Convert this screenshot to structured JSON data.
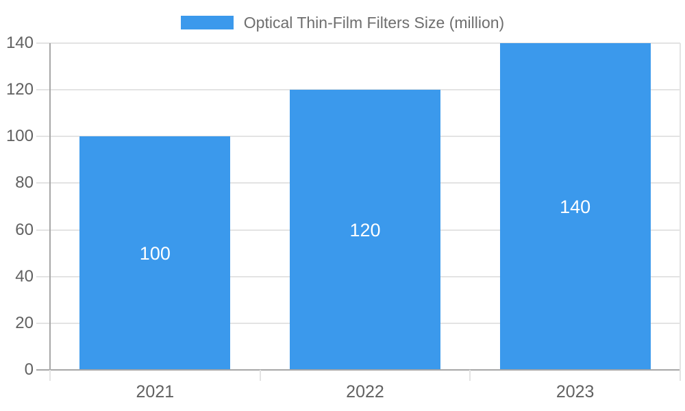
{
  "legend": {
    "label": "Optical Thin-Film Filters Size (million)"
  },
  "chart_data": {
    "type": "bar",
    "title": "Optical Thin-Film Filters Size (million)",
    "categories": [
      "2021",
      "2022",
      "2023"
    ],
    "values": [
      100,
      120,
      140
    ],
    "bar_value_labels": [
      "100",
      "120",
      "140"
    ],
    "series": [
      {
        "name": "Optical Thin-Film Filters Size (million)",
        "values": [
          100,
          120,
          140
        ]
      }
    ],
    "xlabel": "",
    "ylabel": "",
    "ylim": [
      0,
      140
    ],
    "ytick_step": 20,
    "ytick_labels": [
      "0",
      "20",
      "40",
      "60",
      "80",
      "100",
      "120",
      "140"
    ],
    "grid": "on",
    "legend_position": "top-center",
    "colors": {
      "bar": "#3B99EC",
      "value_label": "#FFFFFF",
      "axis_label": "#616161",
      "legend_text": "#6E6E6E",
      "axis_line": "#A6A6A6",
      "grid_line": "#E3E3E3",
      "background": "#FFFFFF"
    }
  }
}
